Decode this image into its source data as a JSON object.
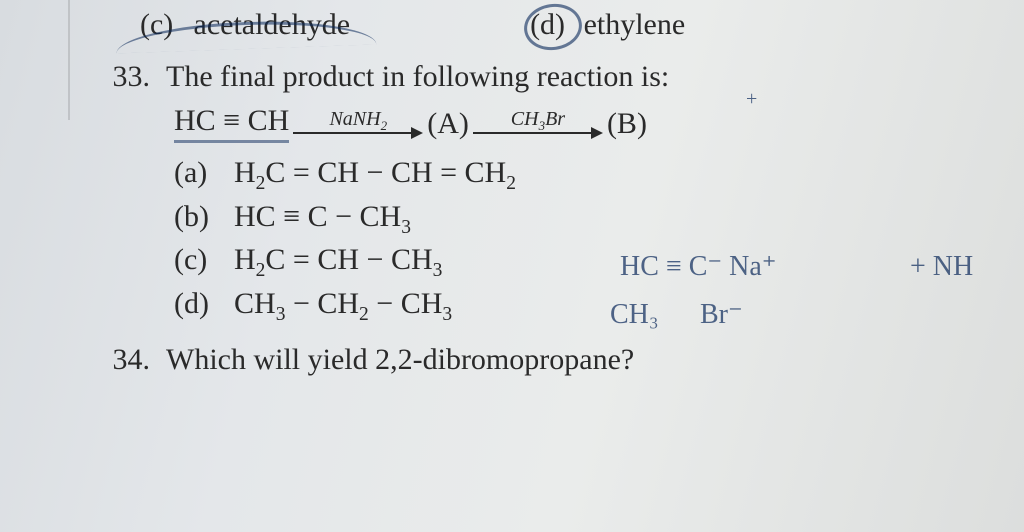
{
  "prev": {
    "c_label": "(c)",
    "c_text": "acetaldehyde",
    "d_label": "(d)",
    "d_text": "ethylene"
  },
  "q33": {
    "num": "33.",
    "text": "The final product in following reaction is:",
    "reaction": {
      "start": "HC ≡ CH",
      "reagent1_plain": "NaNH",
      "reagent1_sub": "2",
      "mid": "(A)",
      "reagent2_plain": "CH",
      "reagent2_sub": "3",
      "reagent2_tail": "Br",
      "end": "(B)"
    },
    "answers": {
      "a_label": "(a)",
      "a_text_parts": [
        "H",
        "2",
        "C = CH − CH = CH",
        "2",
        ""
      ],
      "b_label": "(b)",
      "b_text_parts": [
        "HC ≡ C − CH",
        "3",
        ""
      ],
      "c_label": "(c)",
      "c_text_parts": [
        "H",
        "2",
        "C = CH − CH",
        "3",
        ""
      ],
      "d_label": "(d)",
      "d_text_parts": [
        "CH",
        "3",
        " − CH",
        "2",
        " − CH",
        "3",
        ""
      ]
    }
  },
  "handwriting": {
    "line1": "HC ≡ C⁻ Na⁺",
    "line2a": "CH₃",
    "line2b": "Br⁻",
    "tail": "+ NH",
    "plus": "+"
  },
  "q34": {
    "num": "34.",
    "text": "Which will yield 2,2-dibromopropane?"
  },
  "colors": {
    "text": "#2a2a2a",
    "ink": "rgba(10,40,90,0.65)",
    "bg_light": "#eaeceb",
    "bg_dark": "#d8dce0"
  }
}
